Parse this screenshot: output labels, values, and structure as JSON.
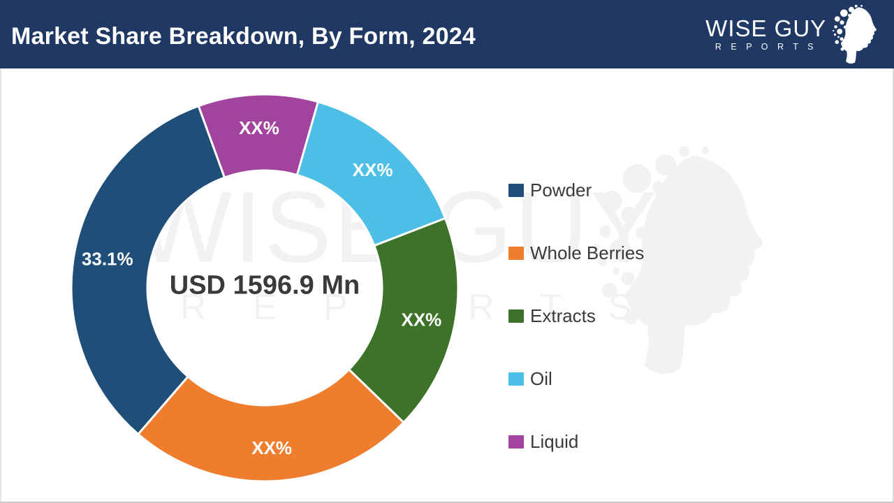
{
  "header": {
    "title": "Market Share Breakdown, By Form, 2024",
    "background_color": "#1F3864"
  },
  "brand": {
    "line1": "WISE GUY",
    "line2": "R E P O R T S"
  },
  "watermark": {
    "line1": "WISE GUY",
    "line2": "R E P O R T S"
  },
  "colors": {
    "header_background": "#1F3864",
    "text_dark": "#3A3A3A",
    "watermark_gray": "#F2F2F4",
    "slice_border": "#FFFFFF"
  },
  "chart_data": {
    "type": "pie",
    "subtype": "donut",
    "title": "Market Share Breakdown, By Form, 2024",
    "center_label": "USD 1596.9 Mn",
    "units": "percent share of market",
    "start_angle_deg": 110,
    "direction": "counterclockwise",
    "legend_position": "right",
    "grid": false,
    "segments": [
      {
        "label": "Powder",
        "value_pct": 33.1,
        "data_label": "33.1%",
        "color": "#1F4E78"
      },
      {
        "label": "Whole Berries",
        "value_pct": 24.1,
        "data_label": "XX%",
        "color": "#EE7D2E"
      },
      {
        "label": "Extracts",
        "value_pct": 18.1,
        "data_label": "XX%",
        "color": "#3D7228"
      },
      {
        "label": "Oil",
        "value_pct": 14.7,
        "data_label": "XX%",
        "color": "#4DBFE7"
      },
      {
        "label": "Liquid",
        "value_pct": 10.0,
        "data_label": "XX%",
        "color": "#A2449D"
      }
    ]
  }
}
